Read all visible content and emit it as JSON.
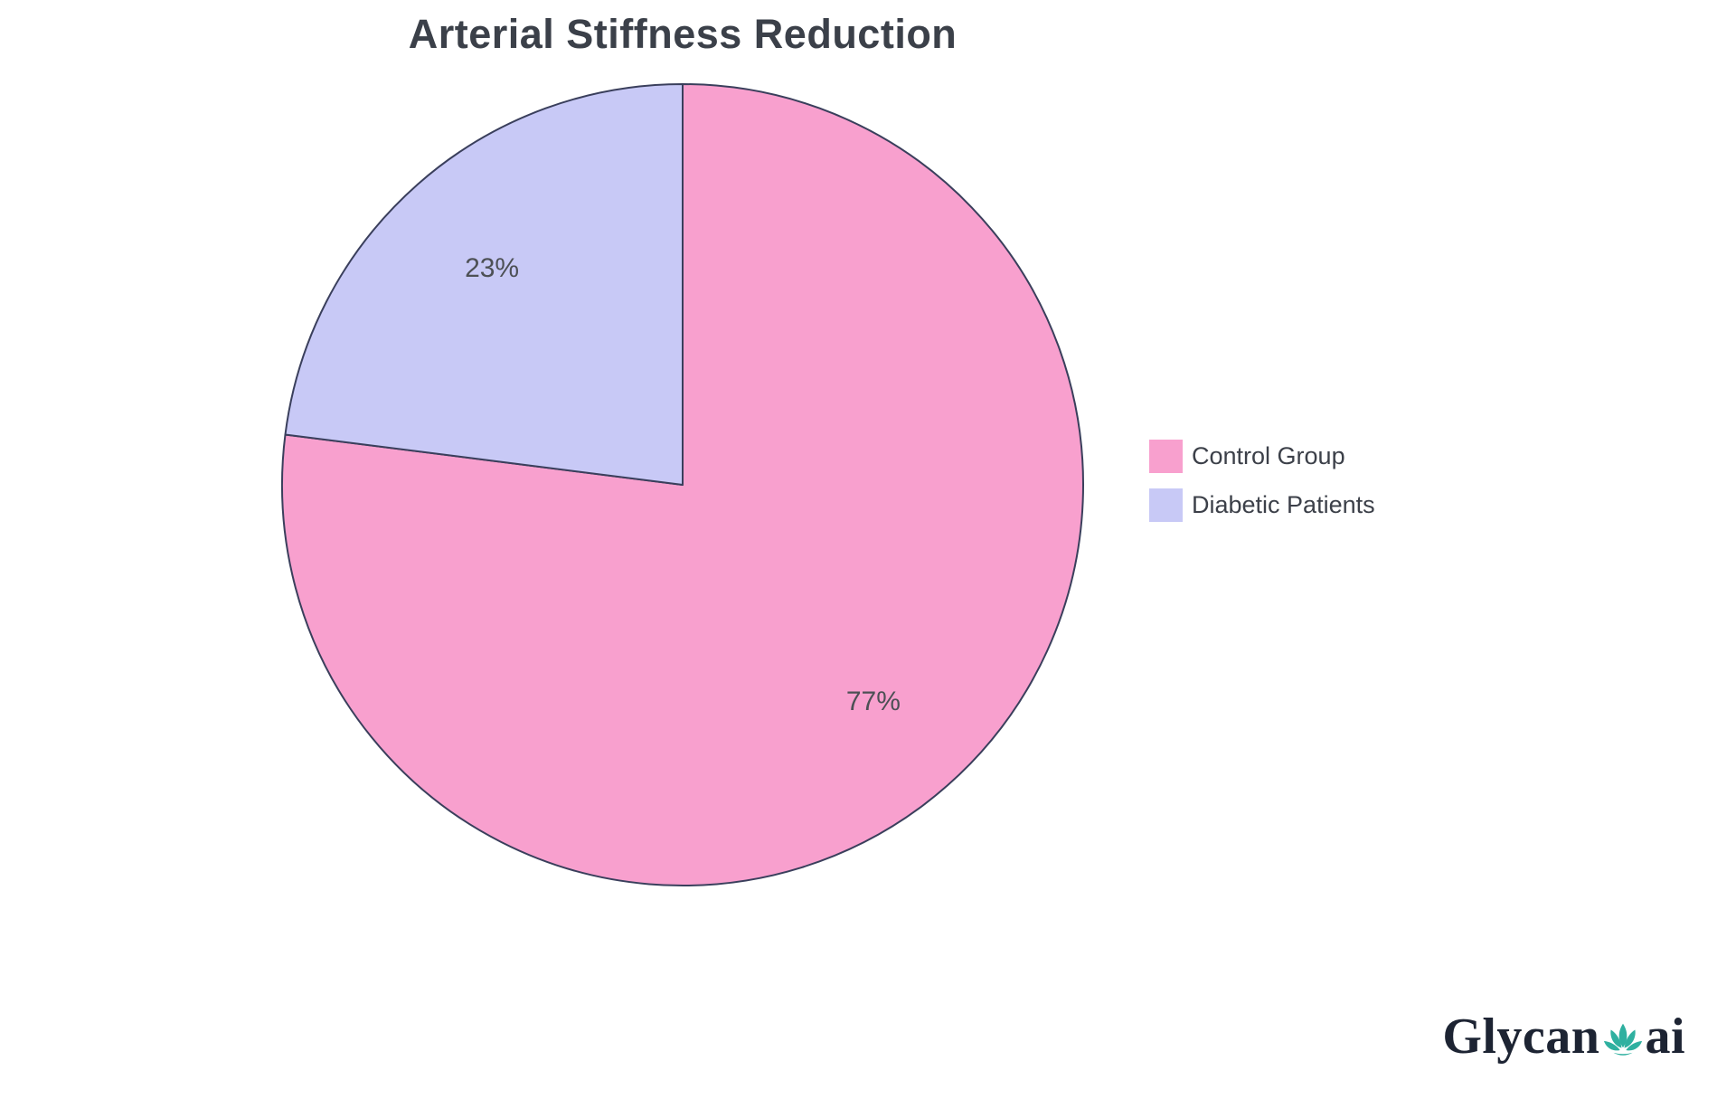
{
  "page": {
    "background_color": "#ffffff"
  },
  "chart_data": {
    "type": "pie",
    "title": "Arterial Stiffness Reduction",
    "labels": [
      "Control Group",
      "Diabetic Patients"
    ],
    "values": [
      77,
      23
    ],
    "slice_labels": [
      "77%",
      "23%"
    ],
    "colors": [
      "#F8A0CE",
      "#C8C9F6"
    ],
    "stroke_color": "#3a3f5c",
    "label_color": "#4d5055",
    "start_angle_deg": 0,
    "direction": "clockwise",
    "legend_position": "right",
    "grid": false
  },
  "branding": {
    "logo_text_left": "Glycan",
    "logo_text_right": "ai",
    "logo_icon": "lotus-icon",
    "logo_text_color": "#1d2433",
    "logo_icon_color": "#2fb0a0"
  }
}
